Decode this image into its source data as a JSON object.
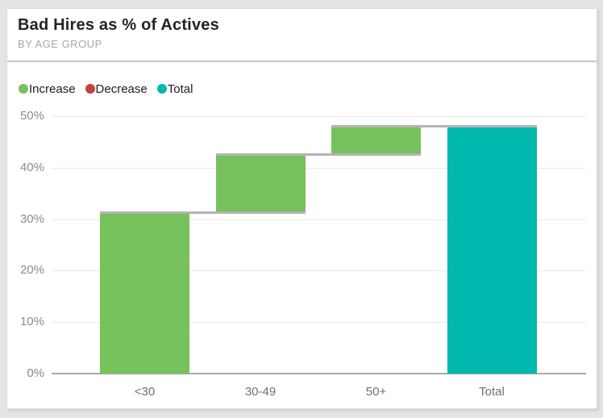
{
  "header": {
    "title": "Bad Hires as % of Actives",
    "subtitle": "BY AGE GROUP"
  },
  "legend": {
    "items": [
      {
        "label": "Increase",
        "color": "#76C15C"
      },
      {
        "label": "Decrease",
        "color": "#C4423C"
      },
      {
        "label": "Total",
        "color": "#00B8AD"
      }
    ]
  },
  "chart_data": {
    "type": "bar",
    "subtype": "waterfall",
    "title": "Bad Hires as % of Actives",
    "subtitle": "BY AGE GROUP",
    "categories": [
      "<30",
      "30-49",
      "50+",
      "Total"
    ],
    "steps": [
      {
        "category": "<30",
        "delta": 31.0,
        "cumulative": 31.0,
        "kind": "increase"
      },
      {
        "category": "30-49",
        "delta": 11.3,
        "cumulative": 42.3,
        "kind": "increase"
      },
      {
        "category": "50+",
        "delta": 5.5,
        "cumulative": 47.8,
        "kind": "increase"
      },
      {
        "category": "Total",
        "delta": 47.8,
        "cumulative": 47.8,
        "kind": "total"
      }
    ],
    "ylabel": "",
    "xlabel": "",
    "ylim": [
      0,
      50
    ],
    "y_axis": {
      "tick_labels": [
        "0%",
        "10%",
        "20%",
        "30%",
        "40%",
        "50%"
      ],
      "tick_values": [
        0,
        10,
        20,
        30,
        40,
        50
      ]
    },
    "grid": true,
    "legend_position": "top-left",
    "colors": {
      "increase": "#76C15C",
      "decrease": "#C4423C",
      "total": "#00B8AD",
      "gridline": "#EAEAEA",
      "axis_line": "#A9A9A9",
      "connector": "#B4B4B4"
    }
  }
}
